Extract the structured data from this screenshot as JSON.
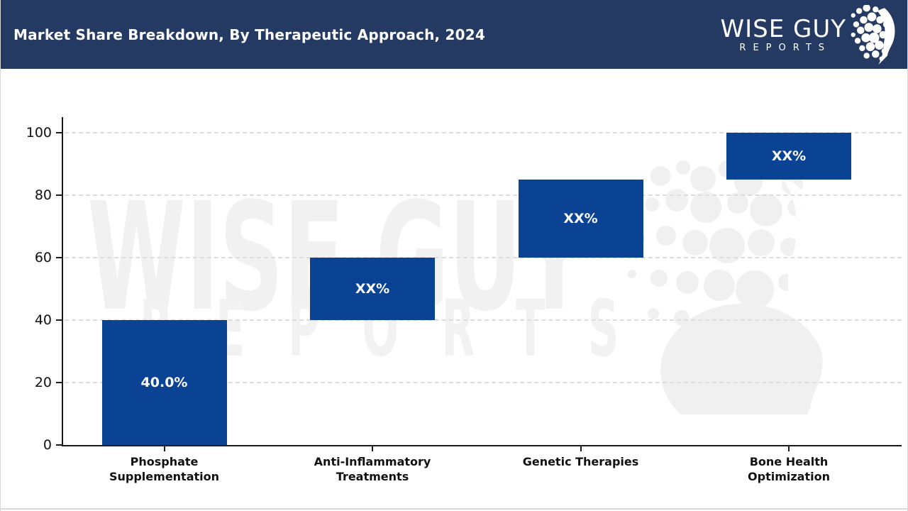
{
  "header": {
    "title": "Market Share Breakdown, By Therapeutic Approach, 2024",
    "bg_color": "#253a63",
    "logo": {
      "line1": "WISE GUY",
      "line2": "REPORTS"
    }
  },
  "watermark": {
    "line1": "WISE GUY",
    "line2": "REPORTS"
  },
  "chart_data": {
    "type": "bar",
    "subtype": "waterfall",
    "title": "Market Share Breakdown, By Therapeutic Approach, 2024",
    "categories": [
      "Phosphate\nSupplementation",
      "Anti-Inflammatory\nTreatments",
      "Genetic Therapies",
      "Bone Health\nOptimization"
    ],
    "bars": [
      {
        "category": "Phosphate Supplementation",
        "start": 0,
        "end": 40,
        "increment_label": "40.0%"
      },
      {
        "category": "Anti-Inflammatory Treatments",
        "start": 40,
        "end": 60,
        "increment_label": "XX%"
      },
      {
        "category": "Genetic Therapies",
        "start": 60,
        "end": 85,
        "increment_label": "XX%"
      },
      {
        "category": "Bone Health Optimization",
        "start": 85,
        "end": 100,
        "increment_label": "XX%"
      }
    ],
    "y_ticks": [
      0,
      20,
      40,
      60,
      80,
      100
    ],
    "ylim": [
      0,
      105
    ],
    "grid": "horizontal dashed",
    "legend": "none",
    "bar_color": "#0a4294",
    "value_label_color": "#ffffff"
  }
}
